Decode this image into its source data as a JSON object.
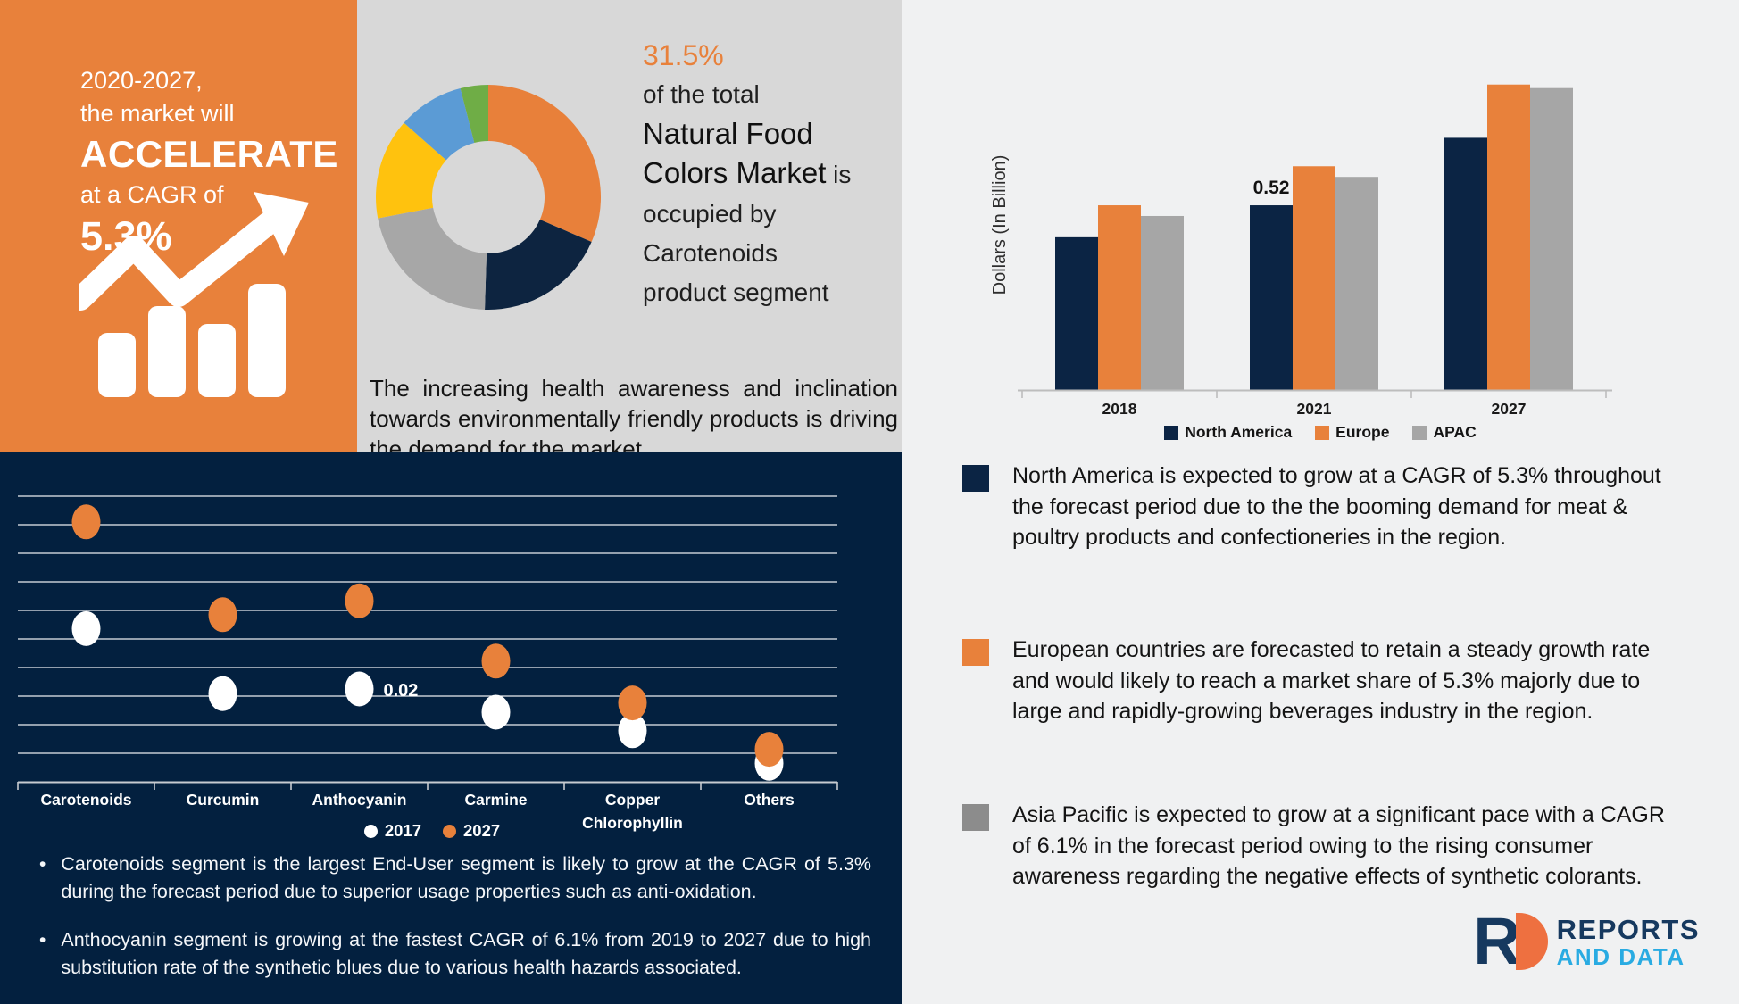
{
  "left_panel": {
    "line1": "2020-2027,",
    "line2": "the market will",
    "line3": "ACCELERATE",
    "line4": "at a CAGR of",
    "line5": "5.3%"
  },
  "middle_panel": {
    "headline": {
      "pct": "31.5%",
      "l2": "of the total",
      "l3": "Natural Food",
      "l4a": "Colors Market",
      "l4b": " is",
      "l5": "occupied by",
      "l6": "Carotenoids",
      "l7": "product segment"
    },
    "paragraph": "The increasing health awareness and inclination towards environmentally friendly products is driving the demand for the market."
  },
  "navy_panel": {
    "bullets": [
      "Carotenoids segment is the largest End-User segment is likely to grow at the CAGR of 5.3% during the forecast period due to superior usage properties such as anti-oxidation.",
      "Anthocyanin segment is growing at the fastest CAGR of 6.1% from 2019 to 2027 due to high substitution rate of the synthetic blues due to various health hazards associated."
    ]
  },
  "right_panel": {
    "insights": [
      {
        "color": "#0B2444",
        "text": "North America is expected to grow at a CAGR of 5.3% throughout the forecast period due to the the booming demand for meat & poultry products and confectioneries in the region."
      },
      {
        "color": "#E8813B",
        "text": "European countries are forecasted to retain a steady growth rate and would likely to reach a market share of 5.3% majorly due to large and rapidly-growing beverages industry in the region."
      },
      {
        "color": "#8C8C8C",
        "text": "Asia Pacific is expected to grow at a significant pace with a CAGR of 6.1% in the forecast period owing to the rising consumer awareness regarding the negative effects of synthetic colorants."
      }
    ],
    "logo": {
      "monogram": "R",
      "line1": "REPORTS",
      "line2": "AND DATA"
    }
  },
  "chart_data": [
    {
      "id": "product-share-donut",
      "type": "pie",
      "donut": true,
      "note": "31.5% of the total Natural Food Colors Market is occupied by Carotenoids product segment",
      "segments": [
        {
          "label": "Carotenoids",
          "color_name": "orange",
          "value": 31.5,
          "color": "#E8803A"
        },
        {
          "label": "",
          "color_name": "navy",
          "value": 19.0,
          "color": "#0D2440"
        },
        {
          "label": "",
          "color_name": "gray",
          "value": 21.5,
          "color": "#A7A7A7"
        },
        {
          "label": "",
          "color_name": "yellow",
          "value": 14.5,
          "color": "#FFC20E"
        },
        {
          "label": "",
          "color_name": "blue",
          "value": 9.5,
          "color": "#5B9BD5"
        },
        {
          "label": "",
          "color_name": "green",
          "value": 4.0,
          "color": "#6FAD46"
        }
      ]
    },
    {
      "id": "regional-bars",
      "type": "bar",
      "ylabel": "Dollars (In Billion)",
      "categories": [
        "2018",
        "2021",
        "2027"
      ],
      "series": [
        {
          "name": "North America",
          "color": "#0B2444",
          "values": [
            0.43,
            0.52,
            0.71
          ]
        },
        {
          "name": "Europe",
          "color": "#E8813B",
          "values": [
            0.52,
            0.63,
            0.86
          ]
        },
        {
          "name": "APAC",
          "color": "#A6A6A6",
          "values": [
            0.49,
            0.6,
            0.85
          ]
        }
      ],
      "data_labels": [
        {
          "series": "North America",
          "category": "2021",
          "text": "0.52"
        }
      ],
      "ylim": [
        0,
        0.95
      ],
      "legend_position": "bottom",
      "grid": false
    },
    {
      "id": "segment-dotplot",
      "type": "scatter",
      "categories": [
        "Carotenoids",
        "Curcumin",
        "Anthocyanin",
        "Carmine",
        "Copper Chlorophyllin",
        "Others"
      ],
      "series": [
        {
          "name": "2017",
          "color": "#FFFFFF",
          "values": [
            0.033,
            0.019,
            0.02,
            0.015,
            0.011,
            0.004
          ]
        },
        {
          "name": "2027",
          "color": "#E8813B",
          "values": [
            0.056,
            0.036,
            0.039,
            0.026,
            0.017,
            0.007
          ]
        }
      ],
      "annotations": [
        {
          "series": "2017",
          "category": "Anthocyanin",
          "text": "0.02"
        }
      ],
      "ylim": [
        0,
        0.062
      ],
      "gridlines": 10,
      "legend_position": "bottom"
    }
  ]
}
